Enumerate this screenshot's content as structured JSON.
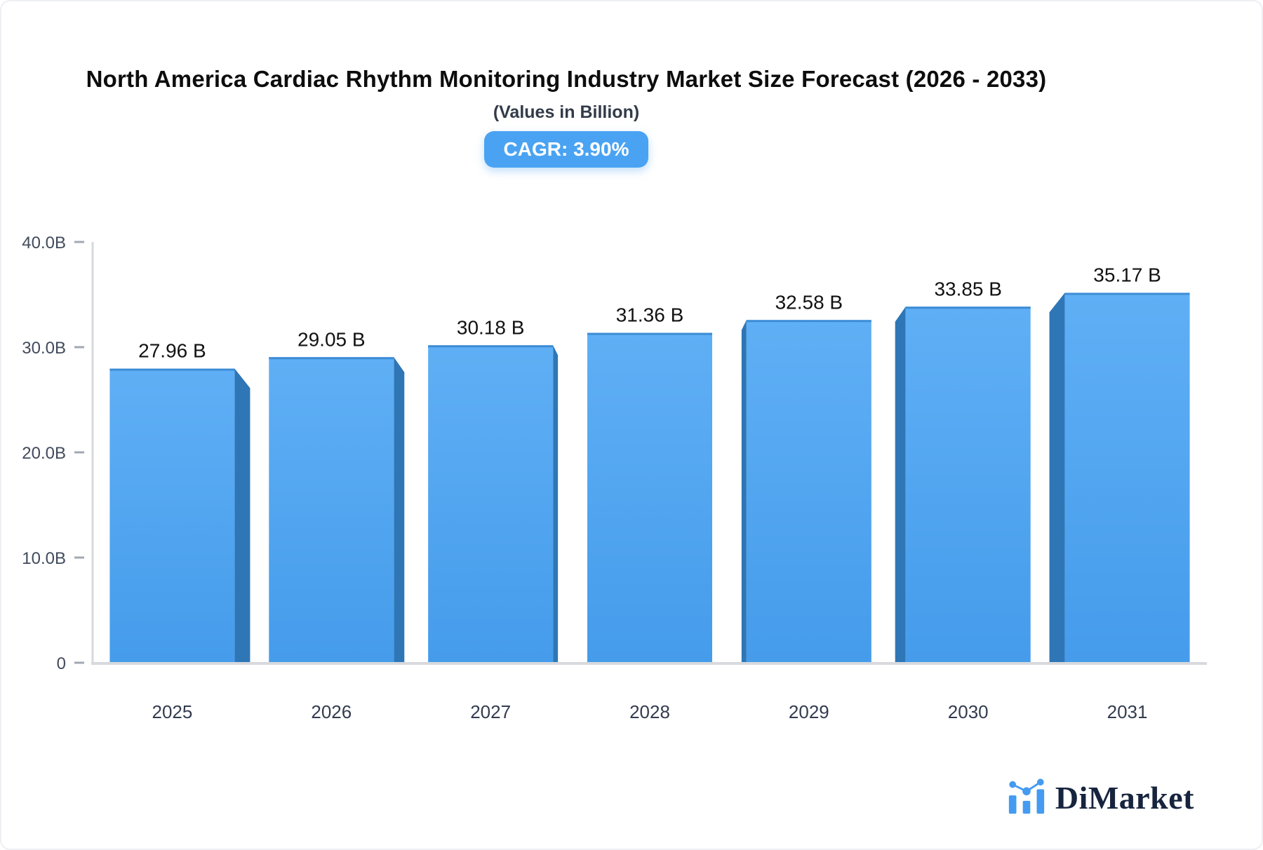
{
  "header": {
    "title": "North America Cardiac Rhythm Monitoring Industry Market Size Forecast (2026 - 2033)",
    "subtitle": "(Values in Billion)",
    "cagr_badge": "CAGR: 3.90%"
  },
  "chart_data": {
    "type": "bar",
    "title": "North America Cardiac Rhythm Monitoring Industry Market Size Forecast (2026 - 2033)",
    "subtitle": "(Values in Billion)",
    "cagr_percent": 3.9,
    "categories": [
      "2025",
      "2026",
      "2027",
      "2028",
      "2029",
      "2030",
      "2031"
    ],
    "values": [
      27.96,
      29.05,
      30.18,
      31.36,
      32.58,
      33.85,
      35.17
    ],
    "value_labels": [
      "27.96 B",
      "29.05 B",
      "30.18 B",
      "31.36 B",
      "32.58 B",
      "33.85 B",
      "35.17 B"
    ],
    "unit": "Billion",
    "xlabel": "",
    "ylabel": "",
    "ylim": [
      0,
      40
    ],
    "yticks": [
      {
        "value": 0,
        "label": "0"
      },
      {
        "value": 10,
        "label": "10.0B"
      },
      {
        "value": 20,
        "label": "20.0B"
      },
      {
        "value": 30,
        "label": "30.0B"
      },
      {
        "value": 40,
        "label": "40.0B"
      }
    ],
    "grid": false,
    "legend_position": "none",
    "style": "3d-perspective-bars",
    "colors": {
      "bar_face_top": "#5faff5",
      "bar_face_bottom": "#459ceb",
      "bar_top_edge": "#3e8cd6",
      "bar_side": "#2e76b6",
      "axis_line": "#d7d9de",
      "tick_mark": "#a2a8b2",
      "tick_label": "#414b5c",
      "category_label": "#333c4e",
      "value_label": "#121212"
    }
  },
  "footer": {
    "brand": "DiMarket",
    "logo_icon": "mini-bar-chart-icon",
    "logo_color": "#449bf0"
  }
}
